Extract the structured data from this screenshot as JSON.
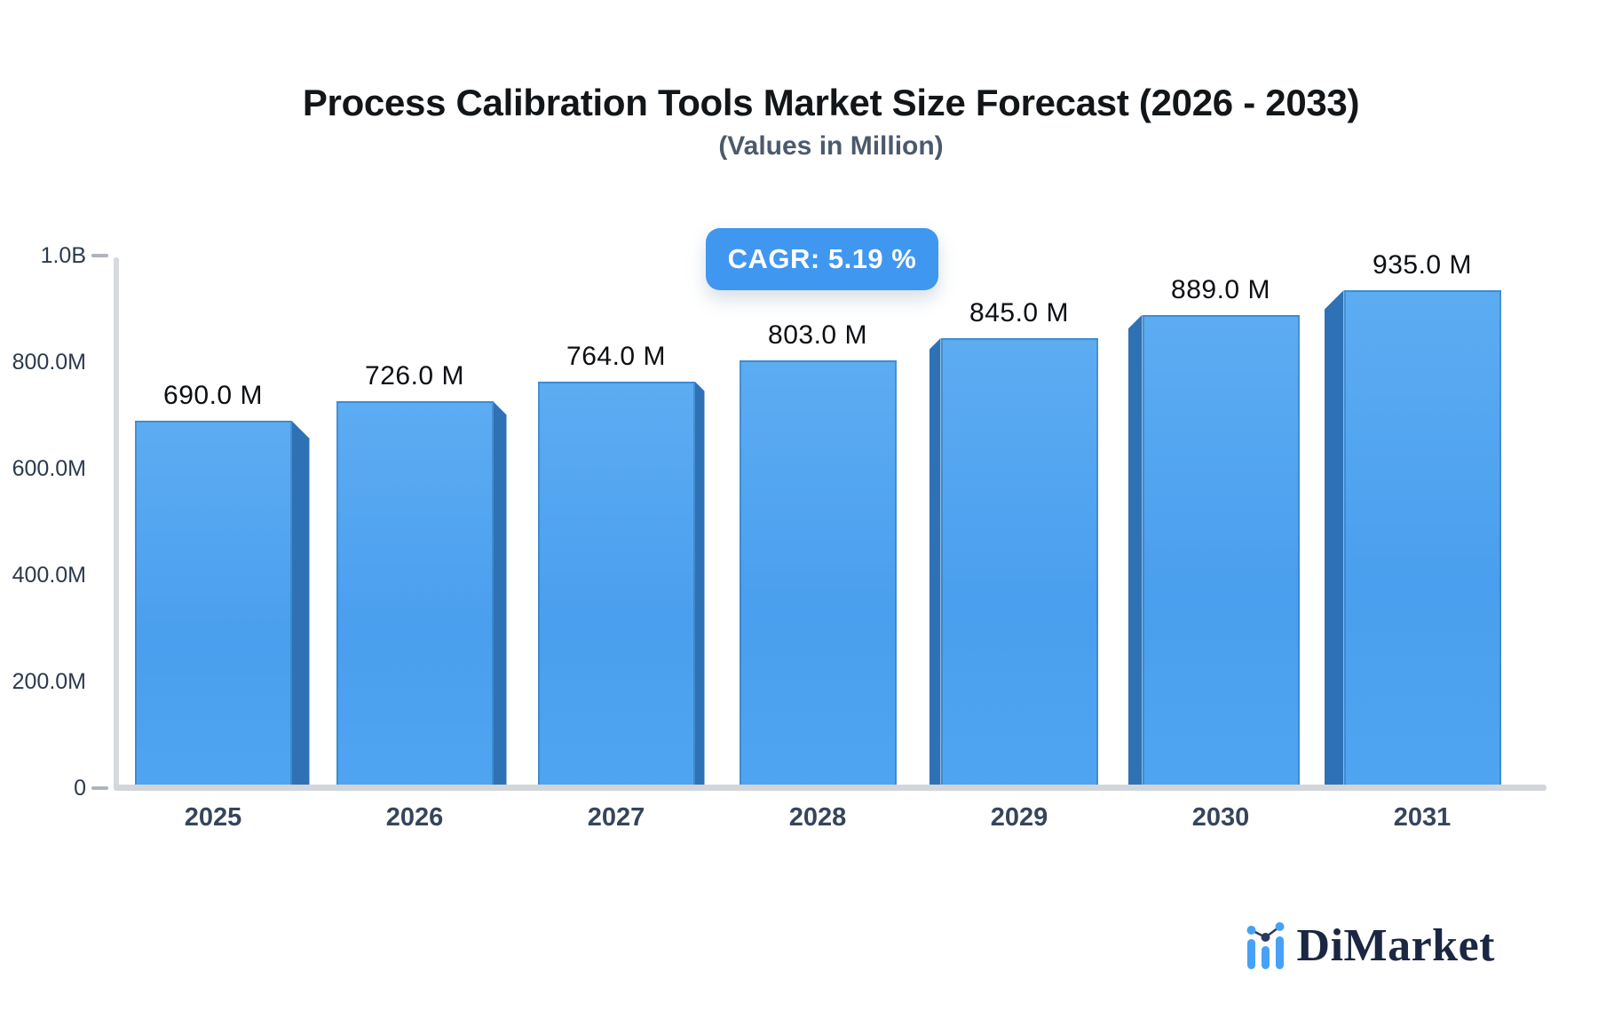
{
  "header": {
    "title": "Process Calibration Tools Market Size Forecast (2026 - 2033)",
    "subtitle": "(Values in Million)"
  },
  "badge": {
    "label": "CAGR: 5.19 %"
  },
  "chart_data": {
    "type": "bar",
    "title": "Process Calibration Tools Market Size Forecast (2026 - 2033)",
    "subtitle": "(Values in Million)",
    "unit": "Million",
    "cagr": "5.19 %",
    "categories": [
      "2025",
      "2026",
      "2027",
      "2028",
      "2029",
      "2030",
      "2031"
    ],
    "values": [
      690,
      726,
      764,
      803,
      845,
      889,
      935
    ],
    "data_labels": [
      "690.0 M",
      "726.0 M",
      "764.0 M",
      "803.0 M",
      "845.0 M",
      "889.0 M",
      "935.0 M"
    ],
    "xlabel": "",
    "ylabel": "",
    "ylim": [
      0,
      1000
    ],
    "y_ticks": [
      {
        "value": 0,
        "label": "0"
      },
      {
        "value": 200,
        "label": "200.0M"
      },
      {
        "value": 400,
        "label": "400.0M"
      },
      {
        "value": 600,
        "label": "600.0M"
      },
      {
        "value": 800,
        "label": "800.0M"
      },
      {
        "value": 1000,
        "label": "1.0B"
      }
    ],
    "grid": false,
    "legend": false,
    "bar_color": "#4BA1EF",
    "bar_side_color": "#2E72B5"
  },
  "logo": {
    "name": "DiMarket"
  },
  "colors": {
    "accent_blue": "#4097EF",
    "bar_face": "#4BA1EF",
    "bar_side": "#2E72B5",
    "axis_gray": "#D5D9DE",
    "logo_navy": "#1B2742",
    "logo_blue": "#47A1F6"
  }
}
